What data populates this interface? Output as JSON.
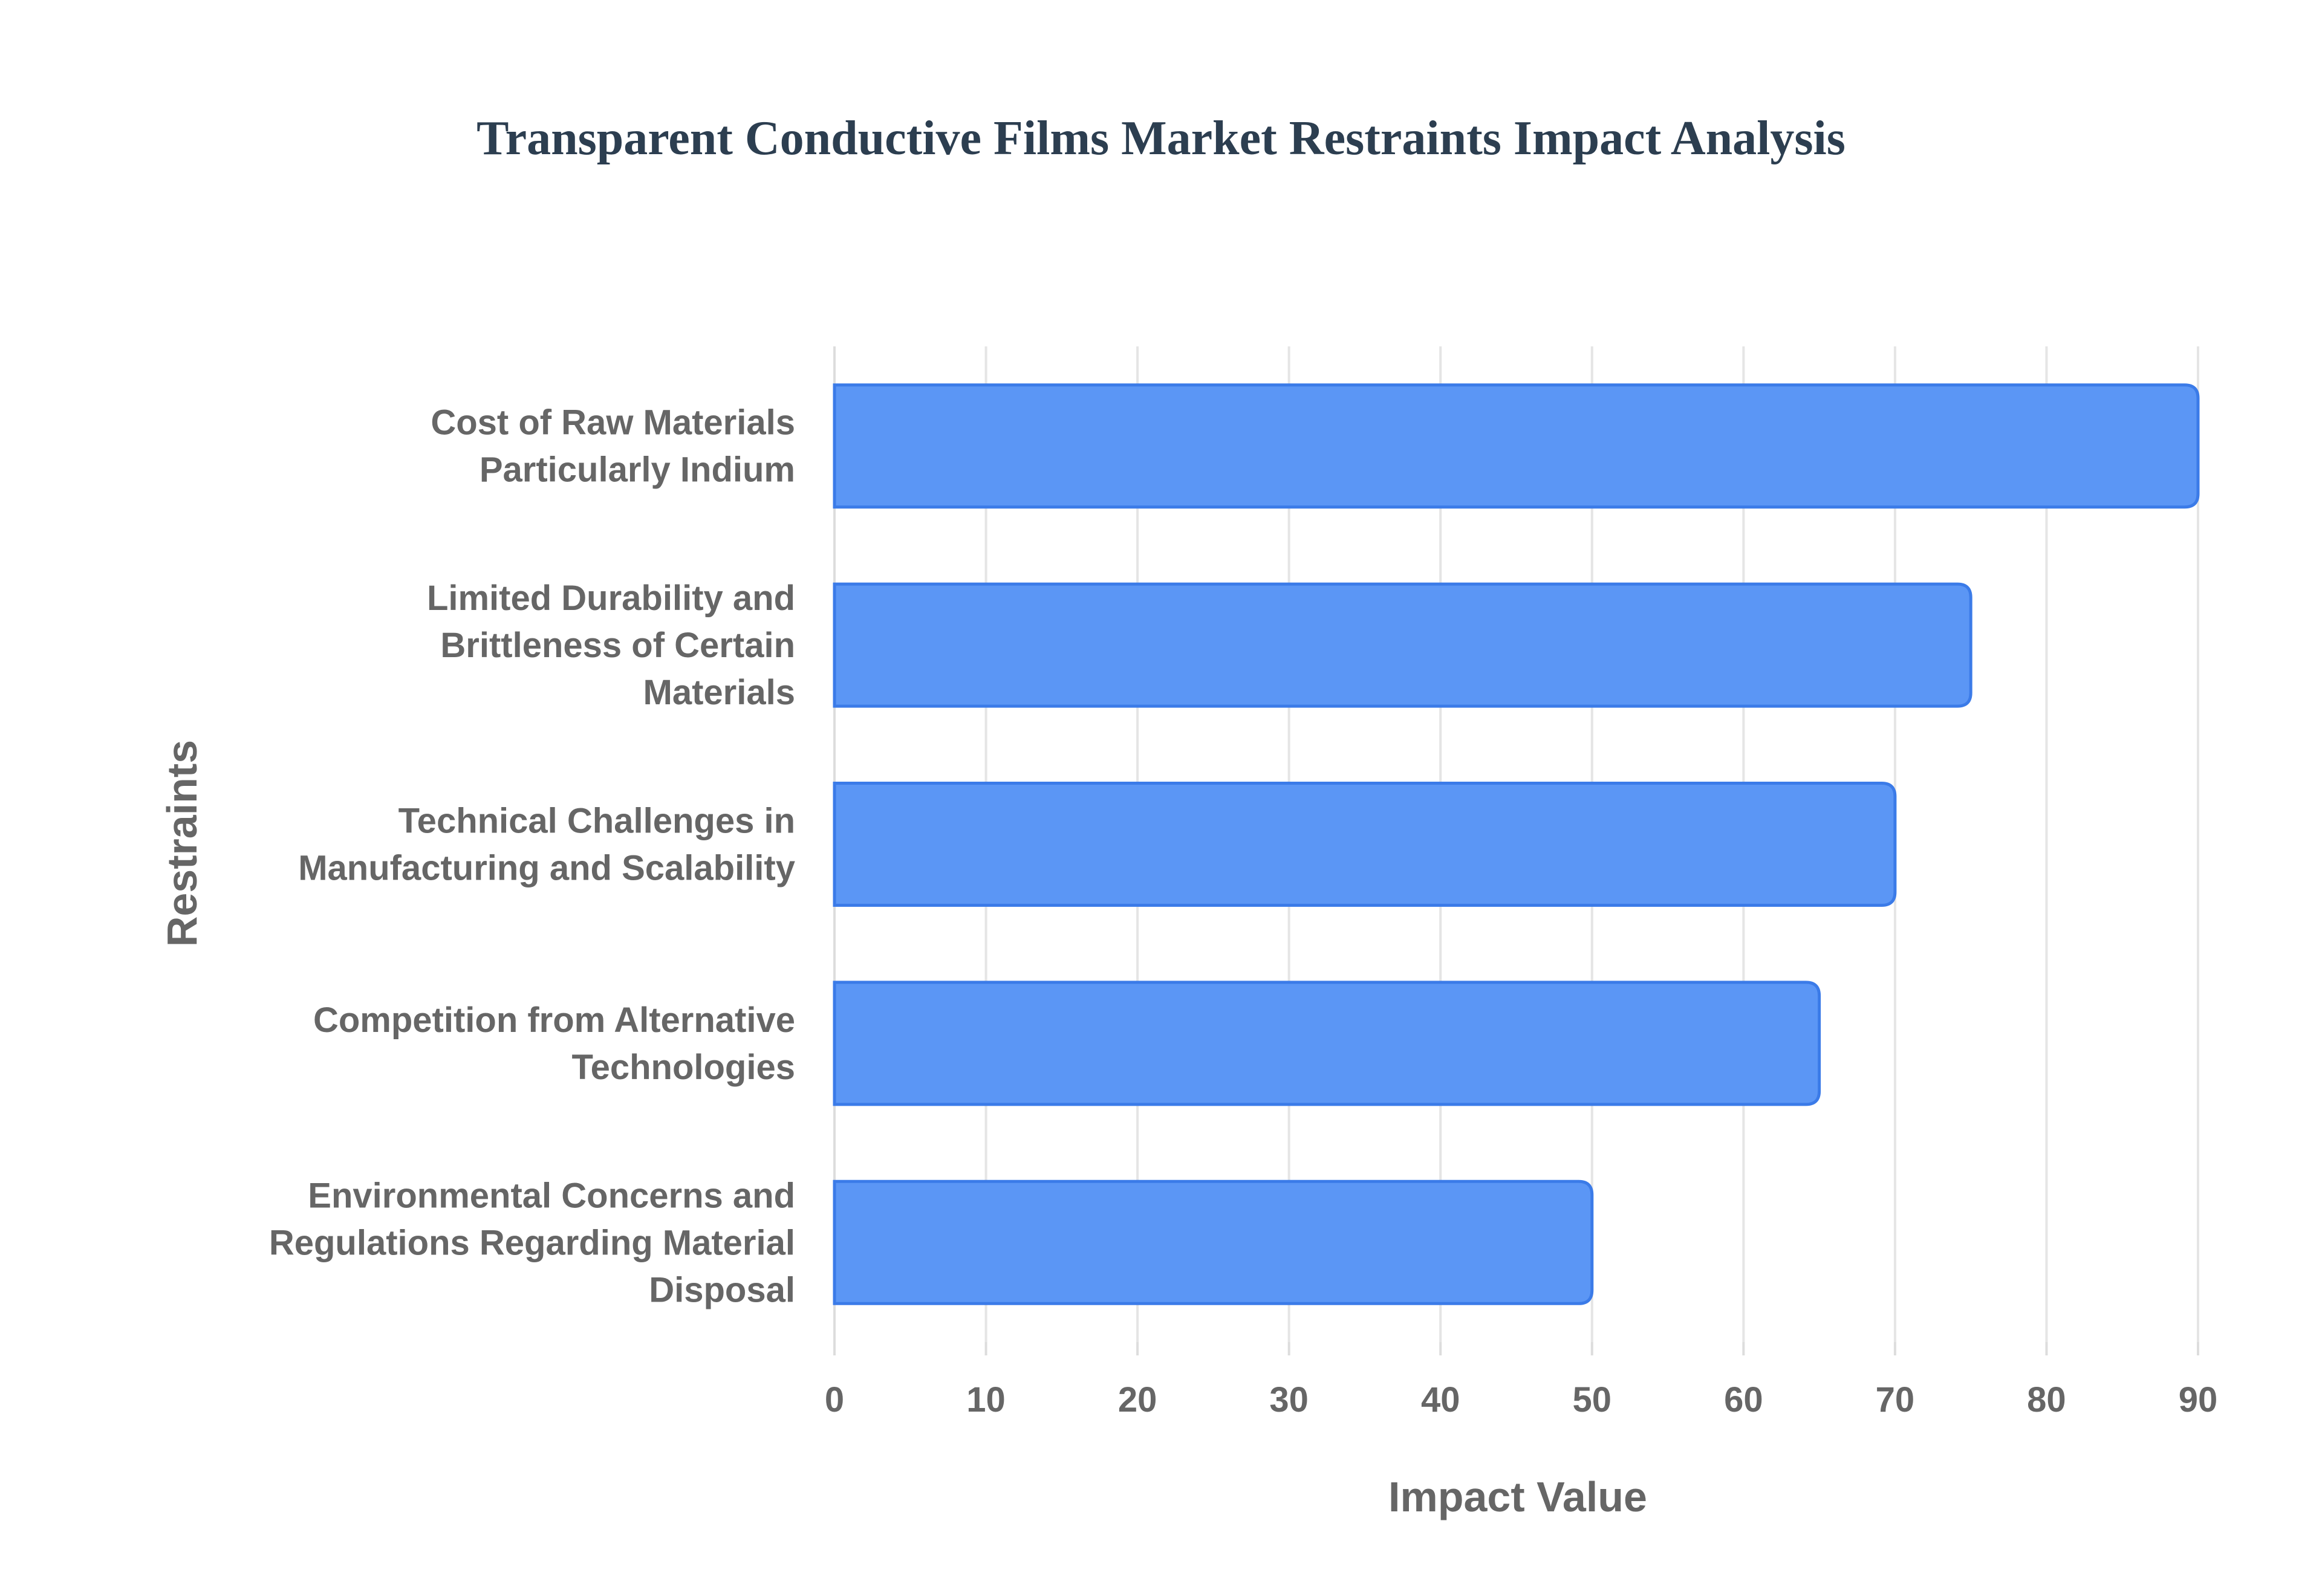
{
  "chart_data": {
    "type": "bar",
    "orientation": "horizontal",
    "title": "Transparent Conductive Films Market Restraints Impact Analysis",
    "xlabel": "Impact Value",
    "ylabel": "Restraints",
    "categories": [
      [
        "Cost of Raw Materials",
        "Particularly Indium"
      ],
      [
        "Limited Durability and",
        "Brittleness of Certain",
        "Materials"
      ],
      [
        "Technical Challenges in",
        "Manufacturing and Scalability"
      ],
      [
        "Competition from Alternative",
        "Technologies"
      ],
      [
        "Environmental Concerns and",
        "Regulations Regarding Material",
        "Disposal"
      ]
    ],
    "values": [
      90,
      75,
      70,
      65,
      50
    ],
    "xlim": [
      0,
      90
    ],
    "xticks": [
      0,
      10,
      20,
      30,
      40,
      50,
      60,
      70,
      80,
      90
    ],
    "grid": true,
    "legend": "none",
    "colors": {
      "bar_fill": "#5b96f5",
      "bar_stroke": "#3b7be8"
    }
  }
}
